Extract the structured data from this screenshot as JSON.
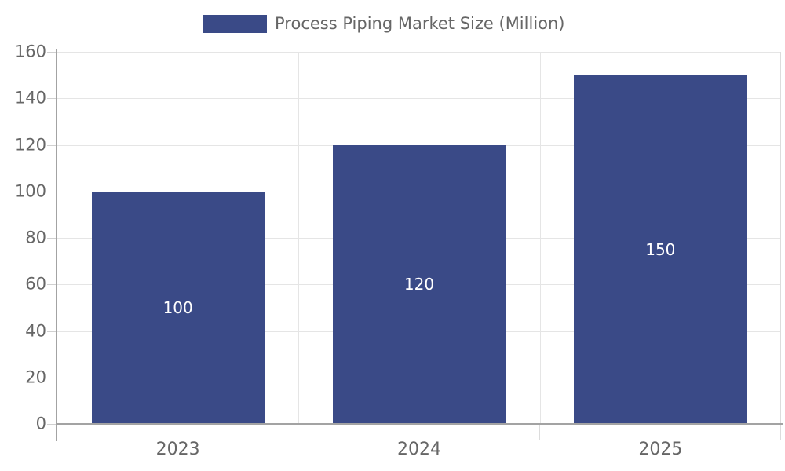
{
  "legend": {
    "label": "Process Piping Market Size (Million)"
  },
  "chart_data": {
    "type": "bar",
    "title": "Process Piping Market Size (Million)",
    "categories": [
      "2023",
      "2024",
      "2025"
    ],
    "values": [
      100,
      120,
      150
    ],
    "series": [
      {
        "name": "Process Piping Market Size (Million)",
        "values": [
          100,
          120,
          150
        ]
      }
    ],
    "data_labels": [
      "100",
      "120",
      "150"
    ],
    "xlabel": "",
    "ylabel": "",
    "ylim": [
      0,
      160
    ],
    "yticks": [
      0,
      20,
      40,
      60,
      80,
      100,
      120,
      140,
      160
    ],
    "grid": true,
    "legend_position": "top-center"
  },
  "colors": {
    "bar": "#3a4a87",
    "grid": "#e5e5e5",
    "axis": "#a3a3a3",
    "y_tick": "#d0d0d0",
    "x_tick": "#dcdcdc",
    "text": "#666666",
    "data_label": "#ffffff",
    "background": "#ffffff"
  }
}
